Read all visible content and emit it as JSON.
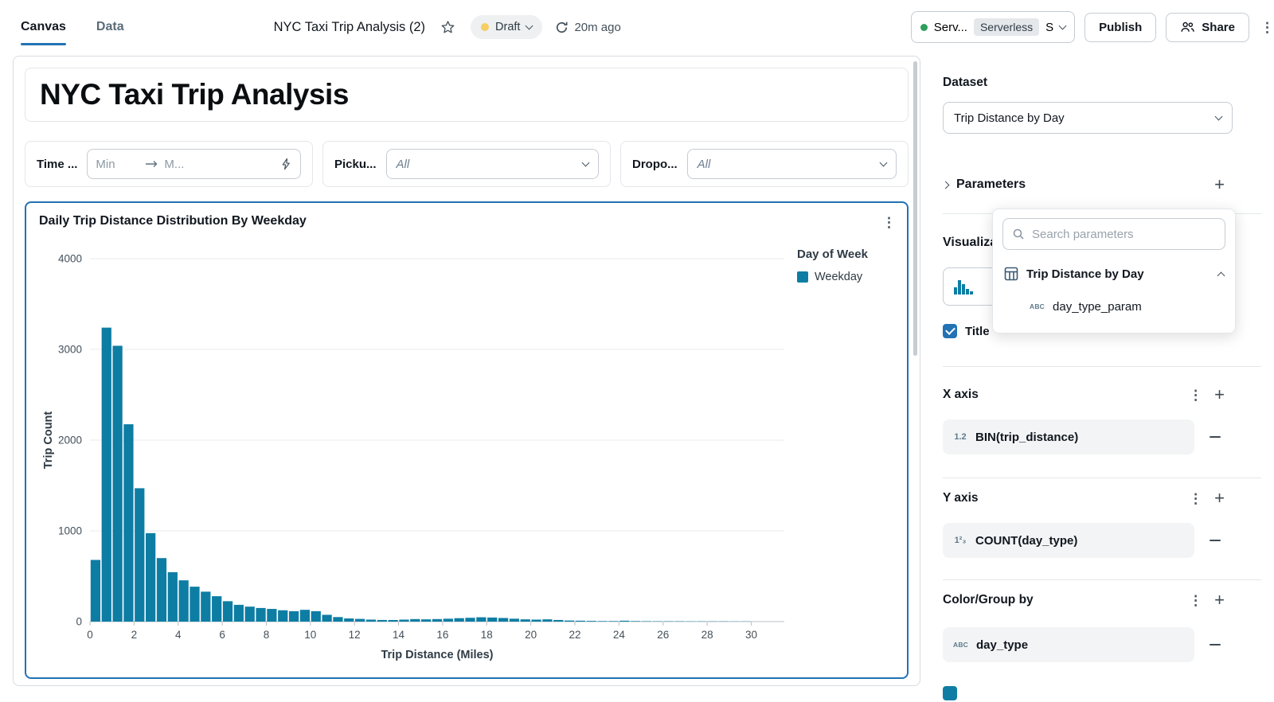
{
  "colors": {
    "accent_blue": "#2272B4",
    "bar_teal": "#0E7DA3",
    "draft_dot_yellow": "#F5CE64",
    "status_green": "#2E9E5B"
  },
  "topbar": {
    "tabs": [
      {
        "label": "Canvas",
        "active": true
      },
      {
        "label": "Data",
        "active": false
      }
    ],
    "doc_title": "NYC Taxi Trip Analysis (2)",
    "status": {
      "label": "Draft"
    },
    "last_refresh": "20m ago",
    "warehouse": {
      "name": "Serv...",
      "badge": "Serverless",
      "size": "S"
    },
    "publish_label": "Publish",
    "share_label": "Share"
  },
  "canvas": {
    "page_title": "NYC Taxi Trip Analysis",
    "filters": [
      {
        "label": "Time ...",
        "kind": "range",
        "min_placeholder": "Min",
        "max_placeholder": "M..."
      },
      {
        "label": "Picku...",
        "kind": "select",
        "value": "All"
      },
      {
        "label": "Dropo...",
        "kind": "select",
        "value": "All"
      }
    ]
  },
  "chart_data": {
    "type": "bar",
    "title": "Daily Trip Distance Distribution By Weekday",
    "xlabel": "Trip Distance (Miles)",
    "ylabel": "Trip Count",
    "legend_title": "Day of Week",
    "series": [
      {
        "name": "Weekday",
        "color": "#0E7DA3"
      }
    ],
    "bin_width": 0.5,
    "xlim": [
      0,
      31.5
    ],
    "ylim": [
      0,
      4000
    ],
    "x_ticks": [
      0,
      2,
      4,
      6,
      8,
      10,
      12,
      14,
      16,
      18,
      20,
      22,
      24,
      26,
      28,
      30
    ],
    "y_ticks": [
      0,
      1000,
      2000,
      3000,
      4000
    ],
    "x": [
      0,
      0.5,
      1,
      1.5,
      2,
      2.5,
      3,
      3.5,
      4,
      4.5,
      5,
      5.5,
      6,
      6.5,
      7,
      7.5,
      8,
      8.5,
      9,
      9.5,
      10,
      10.5,
      11,
      11.5,
      12,
      12.5,
      13,
      13.5,
      14,
      14.5,
      15,
      15.5,
      16,
      16.5,
      17,
      17.5,
      18,
      18.5,
      19,
      19.5,
      20,
      20.5,
      21,
      21.5,
      22,
      22.5,
      23,
      23.5,
      24,
      24.5,
      25,
      25.5,
      26,
      26.5,
      27,
      27.5,
      28,
      28.5,
      29,
      29.5
    ],
    "values": [
      680,
      3240,
      3040,
      2175,
      1470,
      975,
      700,
      545,
      455,
      385,
      330,
      280,
      225,
      185,
      165,
      150,
      140,
      125,
      115,
      130,
      115,
      75,
      50,
      35,
      30,
      22,
      18,
      18,
      22,
      28,
      25,
      28,
      32,
      38,
      42,
      48,
      45,
      40,
      32,
      25,
      22,
      25,
      18,
      12,
      10,
      8,
      6,
      6,
      10,
      6,
      5,
      4,
      4,
      4,
      3,
      3,
      3,
      3,
      2,
      2
    ]
  },
  "sidebar": {
    "dataset": {
      "label": "Dataset",
      "selected": "Trip Distance by Day"
    },
    "parameters": {
      "label": "Parameters"
    },
    "visualization": {
      "label": "Visualization",
      "title_checkbox_label": "Title"
    },
    "x_axis": {
      "label": "X axis",
      "field": "BIN(trip_distance)",
      "field_type": "decimal"
    },
    "y_axis": {
      "label": "Y axis",
      "field": "COUNT(day_type)",
      "field_type": "integer"
    },
    "color_group_by": {
      "label": "Color/Group by",
      "field": "day_type",
      "field_type": "string"
    },
    "parameters_popup": {
      "search_placeholder": "Search parameters",
      "dataset_name": "Trip Distance by Day",
      "parameter_name": "day_type_param"
    }
  }
}
